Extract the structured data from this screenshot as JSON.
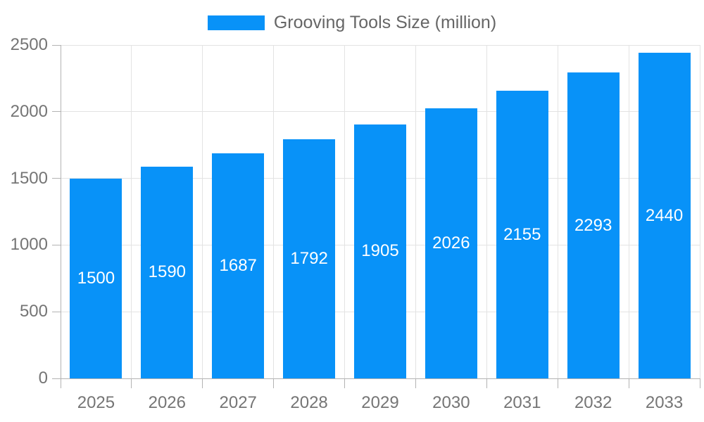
{
  "legend": {
    "label": "Grooving Tools Size (million)"
  },
  "colors": {
    "bar": "#0892f8",
    "grid": "#e3e3e3",
    "axis": "#b3b3b3",
    "tick": "#b3b3b3",
    "tick_text": "#757575",
    "legend_text": "#666666",
    "value_label": "#ffffff",
    "background": "#ffffff"
  },
  "chart_data": {
    "type": "bar",
    "title": "Grooving Tools Size (million)",
    "categories": [
      "2025",
      "2026",
      "2027",
      "2028",
      "2029",
      "2030",
      "2031",
      "2032",
      "2033"
    ],
    "series": [
      {
        "name": "Grooving Tools Size (million)",
        "values": [
          1500,
          1590,
          1687,
          1792,
          1905,
          2026,
          2155,
          2293,
          2440
        ]
      }
    ],
    "xlabel": "",
    "ylabel": "",
    "ylim": [
      0,
      2500
    ],
    "ytick_step": 500,
    "yticks": [
      0,
      500,
      1000,
      1500,
      2000,
      2500
    ],
    "grid": true,
    "legend_position": "top-center",
    "value_label_position": "inside-center"
  }
}
